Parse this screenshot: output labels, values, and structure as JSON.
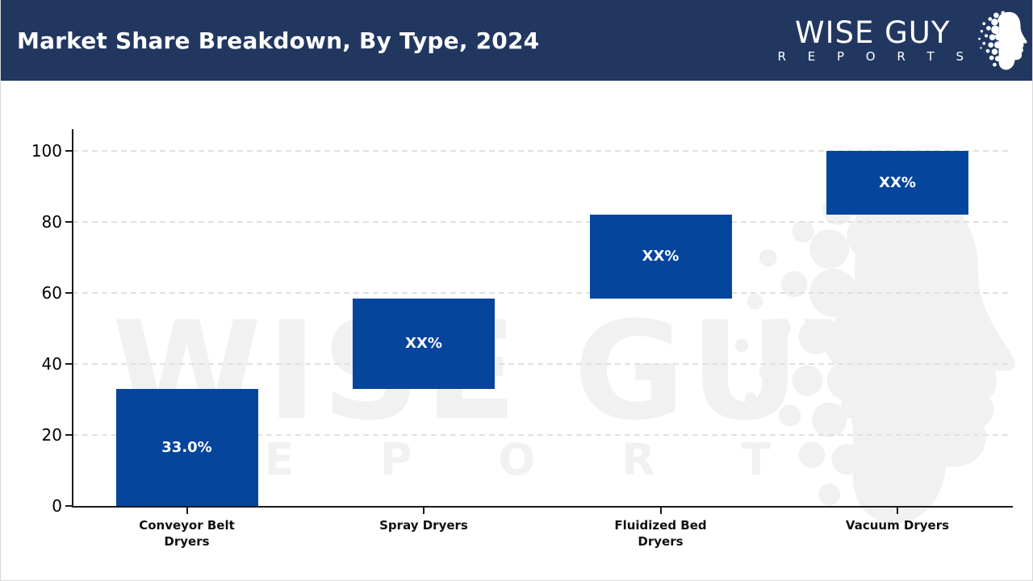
{
  "header": {
    "title": "Market Share Breakdown, By Type, 2024",
    "bg_color": "#223760",
    "brand": {
      "line1": "WISE GUY",
      "line2": "R E P O R T S"
    }
  },
  "watermark": {
    "line1": "WISE GUY",
    "line2": "R E P O R T S"
  },
  "chart_data": {
    "type": "bar",
    "variant": "stacked-waterfall",
    "title": "Market Share Breakdown, By Type, 2024",
    "categories": [
      "Conveyor Belt Dryers",
      "Spray Dryers",
      "Fluidized Bed Dryers",
      "Vacuum Dryers"
    ],
    "category_label_lines": [
      [
        "Conveyor Belt",
        "Dryers"
      ],
      [
        "Spray Dryers"
      ],
      [
        "Fluidized Bed",
        "Dryers"
      ],
      [
        "Vacuum Dryers"
      ]
    ],
    "segments": [
      {
        "category": "Conveyor Belt Dryers",
        "start": 0,
        "end": 33,
        "label": "33.0%"
      },
      {
        "category": "Spray Dryers",
        "start": 33,
        "end": 58.5,
        "label": "XX%"
      },
      {
        "category": "Fluidized Bed Dryers",
        "start": 58.5,
        "end": 82,
        "label": "XX%"
      },
      {
        "category": "Vacuum Dryers",
        "start": 82,
        "end": 100,
        "label": "XX%"
      }
    ],
    "y_ticks": [
      0,
      20,
      40,
      60,
      80,
      100
    ],
    "ylim": [
      0,
      106
    ],
    "bar_color": "#05459c",
    "bar_label_color": "#ffffff",
    "grid": "dashed-horizontal",
    "gridline_color": "#e0e0e0",
    "legend": "none"
  }
}
